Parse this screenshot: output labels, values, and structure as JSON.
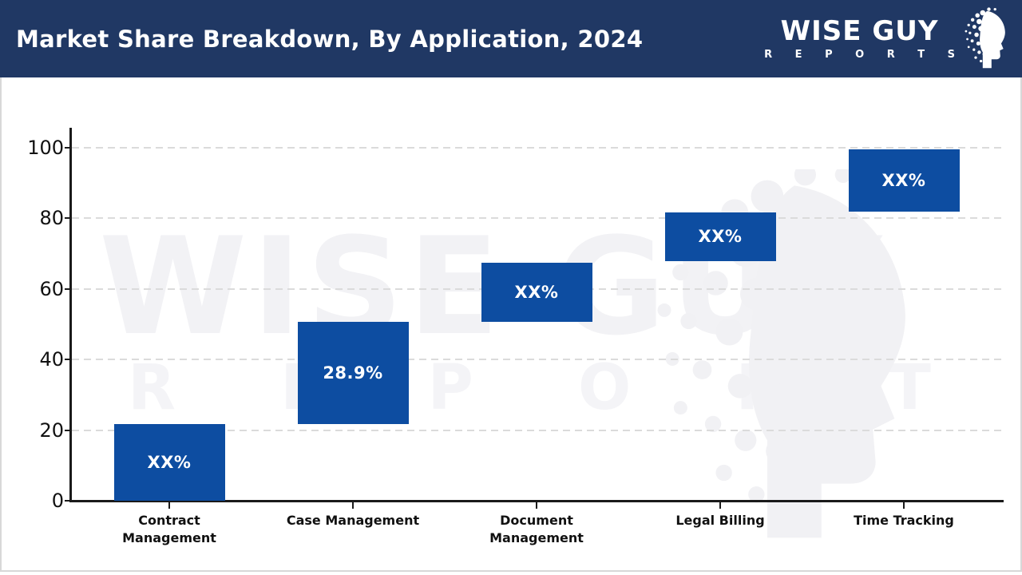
{
  "header": {
    "background": "#203864",
    "title": "Market Share Breakdown, By Application, 2024",
    "logo": {
      "line1": "WISE GUY",
      "line2": "R E P O R T S",
      "head_icon": "dotted-head-profile"
    }
  },
  "watermark": {
    "line1": "WISE GUY",
    "line2": "R E P O R T S",
    "head_icon": "dotted-head-profile"
  },
  "chart_data": {
    "type": "bar",
    "variant": "floating-segment-waterfall",
    "title": "Market Share Breakdown, By Application, 2024",
    "categories": [
      "Contract Management",
      "Case Management",
      "Document Management",
      "Legal Billing",
      "Time Tracking"
    ],
    "category_display": [
      "Contract\nManagement",
      "Case Management",
      "Document\nManagement",
      "Legal Billing",
      "Time Tracking"
    ],
    "segments": [
      {
        "category": "Contract Management",
        "start": 0,
        "end": 21.7,
        "label": "XX%"
      },
      {
        "category": "Case Management",
        "start": 21.7,
        "end": 50.6,
        "label": "28.9%"
      },
      {
        "category": "Document Management",
        "start": 50.6,
        "end": 67.4,
        "label": "XX%"
      },
      {
        "category": "Legal Billing",
        "start": 67.9,
        "end": 81.7,
        "label": "XX%"
      },
      {
        "category": "Time Tracking",
        "start": 81.9,
        "end": 99.5,
        "label": "XX%"
      }
    ],
    "xlabel": "",
    "ylabel": "",
    "ylim": [
      0,
      100
    ],
    "yticks": [
      0,
      20,
      40,
      60,
      80,
      100
    ],
    "grid": "horizontal-dashed",
    "legend": "none",
    "colors": {
      "bar": "#0D4DA1",
      "bar_label": "#FFFFFF",
      "grid": "#DBDBDB",
      "axis": "#1A1A1A",
      "header_bg": "#203864",
      "watermark": "#F2F2F5"
    }
  }
}
